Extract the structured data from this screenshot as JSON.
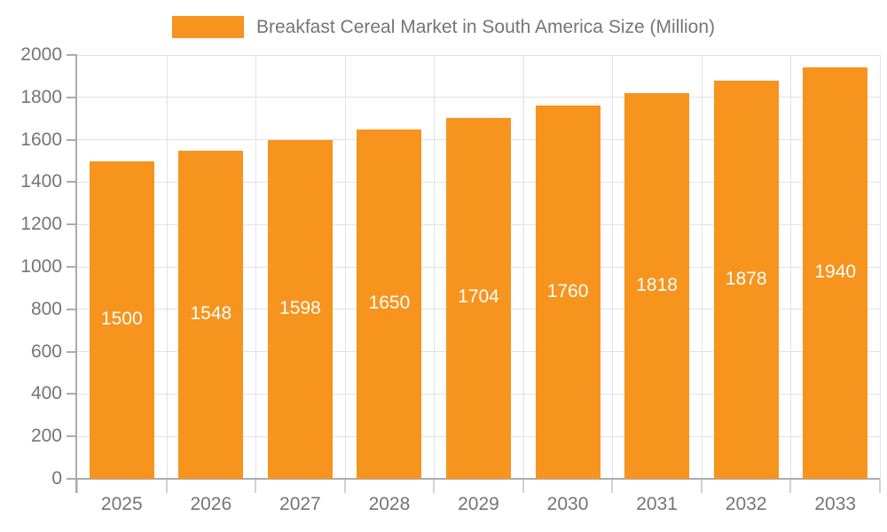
{
  "chart_data": {
    "type": "bar",
    "title": "Breakfast Cereal Market in South America Size (Million)",
    "categories": [
      "2025",
      "2026",
      "2027",
      "2028",
      "2029",
      "2030",
      "2031",
      "2032",
      "2033"
    ],
    "values": [
      1500,
      1548,
      1598,
      1650,
      1704,
      1760,
      1818,
      1878,
      1940
    ],
    "xlabel": "",
    "ylabel": "",
    "ylim": [
      0,
      2000
    ],
    "ytick_step": 200,
    "grid": true,
    "legend_position": "top",
    "colors": {
      "bar": "#F7941E",
      "bar_value_label": "#FFFFFF",
      "axis_text": "#757575",
      "title_text": "#757575",
      "gridline": "#E2E2E2",
      "axis_line": "#ABABAB",
      "x_tick": "#D2D2D2",
      "background": "#FFFFFF"
    }
  }
}
